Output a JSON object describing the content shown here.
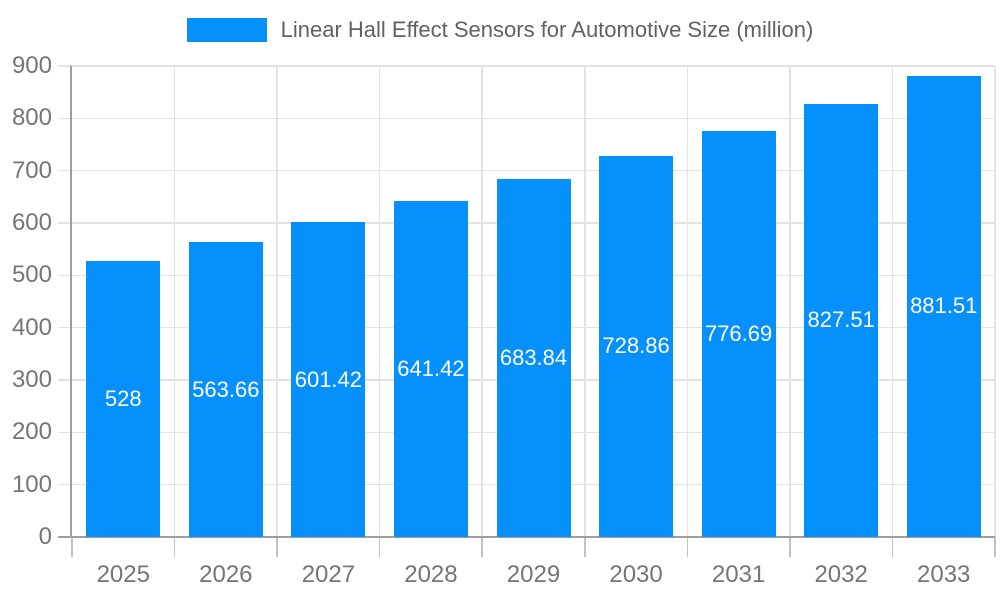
{
  "chart_data": {
    "type": "bar",
    "title": "Linear Hall Effect Sensors for Automotive Size (million)",
    "series_name": "Linear Hall Effect Sensors for Automotive Size (million)",
    "categories": [
      "2025",
      "2026",
      "2027",
      "2028",
      "2029",
      "2030",
      "2031",
      "2032",
      "2033"
    ],
    "values": [
      528,
      563.66,
      601.42,
      641.42,
      683.84,
      728.86,
      776.69,
      827.51,
      881.51
    ],
    "value_labels": [
      "528",
      "563.66",
      "601.42",
      "641.42",
      "683.84",
      "728.86",
      "776.69",
      "827.51",
      "881.51"
    ],
    "xlabel": "",
    "ylabel": "",
    "ylim": [
      0,
      900
    ],
    "yticks": [
      0,
      100,
      200,
      300,
      400,
      500,
      600,
      700,
      800,
      900
    ],
    "ytick_labels": [
      "0",
      "100",
      "200",
      "300",
      "400",
      "500",
      "600",
      "700",
      "800",
      "900"
    ],
    "grid": true,
    "legend_position": "top-center",
    "colors": {
      "bar": "#0590FB",
      "bar_label": "#FFFFFF",
      "axis_line": "#9E9E9E",
      "gridline": "#E3E3E3",
      "tick": "#C2C2C2",
      "axis_text": "#757575",
      "legend_text": "#616161",
      "background": "#FFFFFF"
    }
  }
}
